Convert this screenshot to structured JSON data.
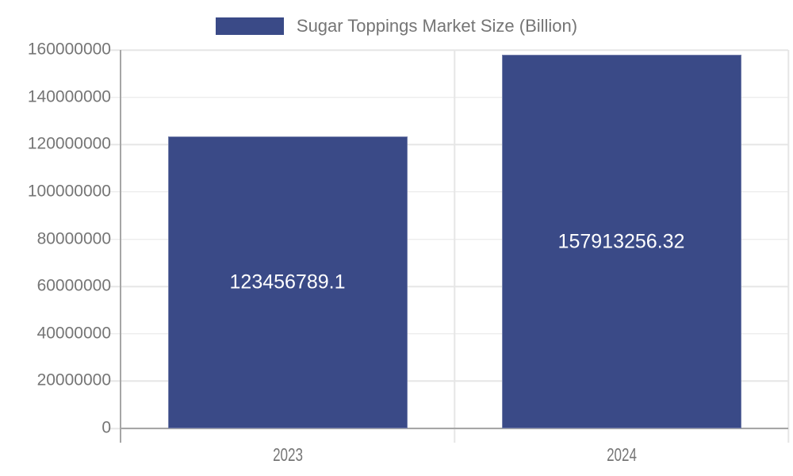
{
  "legend": {
    "title": "Sugar Toppings Market Size (Billion)"
  },
  "chart_data": {
    "type": "bar",
    "title": "Sugar Toppings Market Size (Billion)",
    "categories": [
      "2023",
      "2024"
    ],
    "series": [
      {
        "name": "Sugar Toppings Market Size (Billion)",
        "values": [
          123456789.1,
          157913256.32
        ]
      }
    ],
    "data_labels": [
      "123456789.1",
      "157913256.32"
    ],
    "xlabel": "",
    "ylabel": "",
    "ylim": [
      0,
      160000000
    ],
    "yticks": [
      0,
      20000000,
      40000000,
      60000000,
      80000000,
      100000000,
      120000000,
      140000000,
      160000000
    ],
    "ytick_labels": [
      "0",
      "20000000",
      "40000000",
      "60000000",
      "80000000",
      "100000000",
      "120000000",
      "140000000",
      "160000000"
    ],
    "grid": true,
    "legend_position": "top",
    "colors": {
      "bar": "#3A4A87",
      "grid": "#e6e6e6",
      "axis": "#a6a6a6",
      "tick_label": "#757575",
      "data_label": "#ffffff",
      "background": "#ffffff"
    }
  }
}
